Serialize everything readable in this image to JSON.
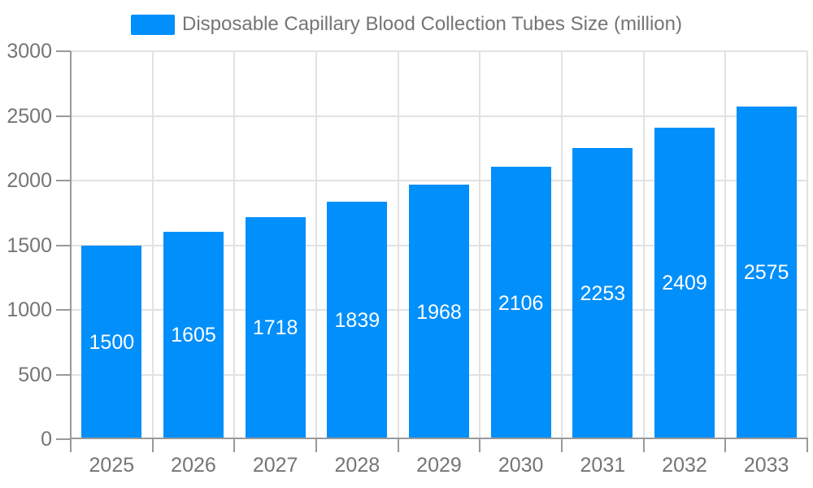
{
  "chart": {
    "background": "#ffffff",
    "legend": {
      "label": "Disposable Capillary Blood Collection Tubes Size (million)",
      "marker_color": "#008FFB"
    }
  },
  "chart_data": {
    "type": "bar",
    "title": "Disposable Capillary Blood Collection Tubes Size (million)",
    "categories": [
      "2025",
      "2026",
      "2027",
      "2028",
      "2029",
      "2030",
      "2031",
      "2032",
      "2033"
    ],
    "series": [
      {
        "name": "Disposable Capillary Blood Collection Tubes Size (million)",
        "values": [
          1500,
          1605,
          1718,
          1839,
          1968,
          2106,
          2253,
          2409,
          2575
        ],
        "color": "#008FFB"
      }
    ],
    "xlabel": "",
    "ylabel": "",
    "ylim": [
      0,
      3000
    ],
    "yticks": [
      0,
      500,
      1000,
      1500,
      2000,
      2500,
      3000
    ],
    "grid": true,
    "legend_position": "top-center",
    "value_labels_position": "inside-center",
    "value_label_color": "#ffffff",
    "axis_text_color": "#757575",
    "axis_line_color": "#999999",
    "grid_color": "#e2e2e2"
  }
}
